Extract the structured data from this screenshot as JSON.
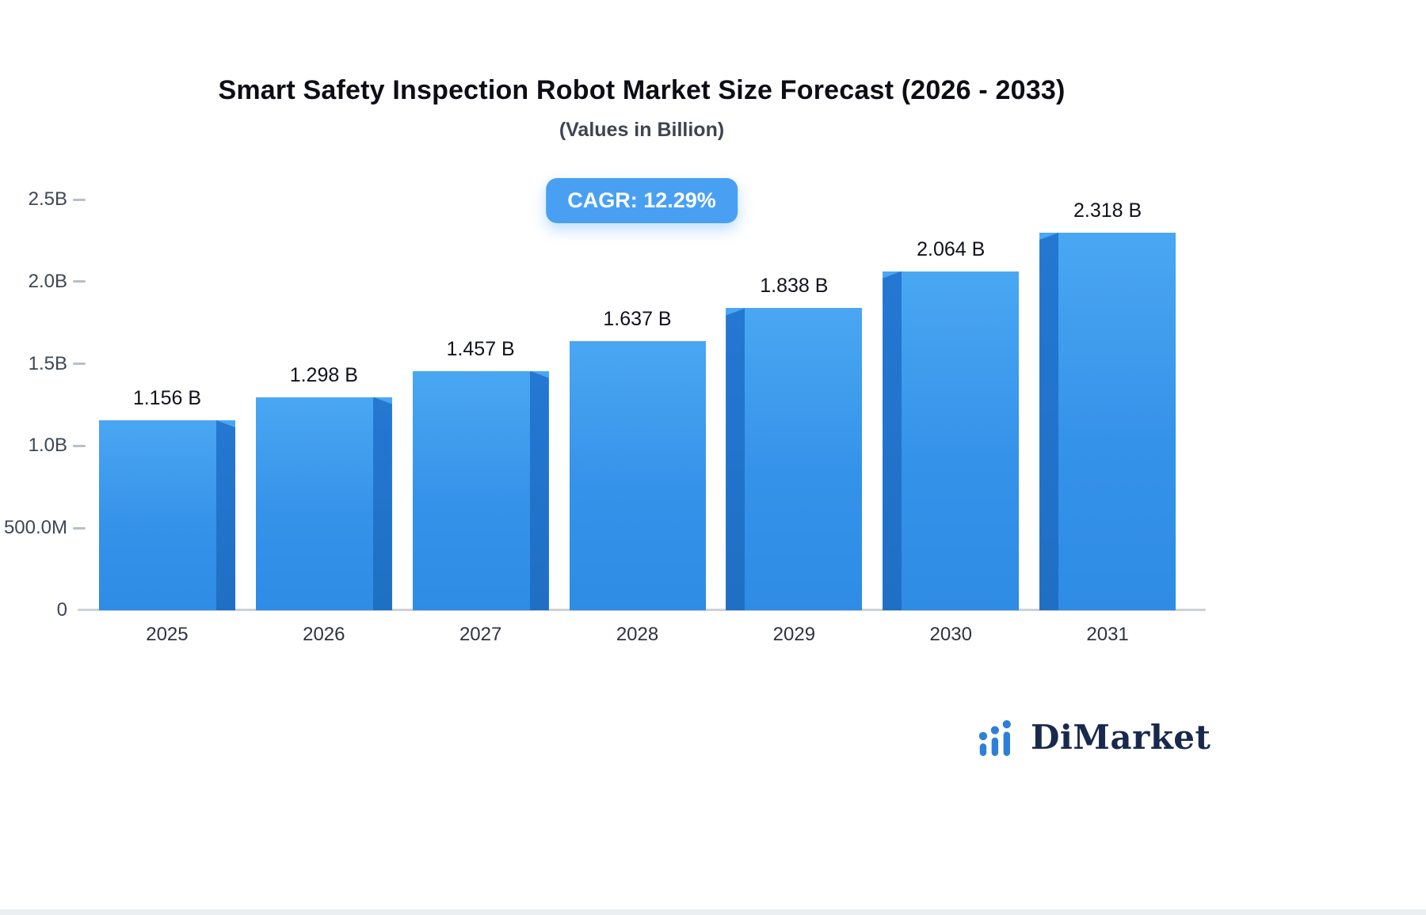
{
  "header": {
    "title": "Smart Safety Inspection Robot Market Size Forecast (2026 - 2033)",
    "subtitle": "(Values in Billion)"
  },
  "badge": {
    "label": "CAGR: 12.29%"
  },
  "chart_data": {
    "type": "bar",
    "categories": [
      "2025",
      "2026",
      "2027",
      "2028",
      "2029",
      "2030",
      "2031"
    ],
    "values": [
      1.156,
      1.298,
      1.457,
      1.637,
      1.838,
      2.064,
      2.318
    ],
    "value_labels": [
      "1.156 B",
      "1.298 B",
      "1.457 B",
      "1.637 B",
      "1.838 B",
      "2.064 B",
      "2.318 B"
    ],
    "title": "Smart Safety Inspection Robot Market Size Forecast (2026 - 2033)",
    "xlabel": "",
    "ylabel": "",
    "ylim": [
      0,
      2.5
    ],
    "y_ticks": [
      "2.5B",
      "2.0B",
      "1.5B",
      "1.0B",
      "500.0M",
      "0"
    ],
    "y_tick_values": [
      2.5,
      2.0,
      1.5,
      1.0,
      0.5,
      0
    ],
    "grid": false,
    "legend": false
  },
  "colors": {
    "bar_main": "#3d9aed",
    "bar_side": "#2276cf",
    "badge_bg": "#49a0f3",
    "logo_blue": "#2e7fd9",
    "logo_navy": "#19294e"
  },
  "logo": {
    "text": "DiMarket"
  }
}
